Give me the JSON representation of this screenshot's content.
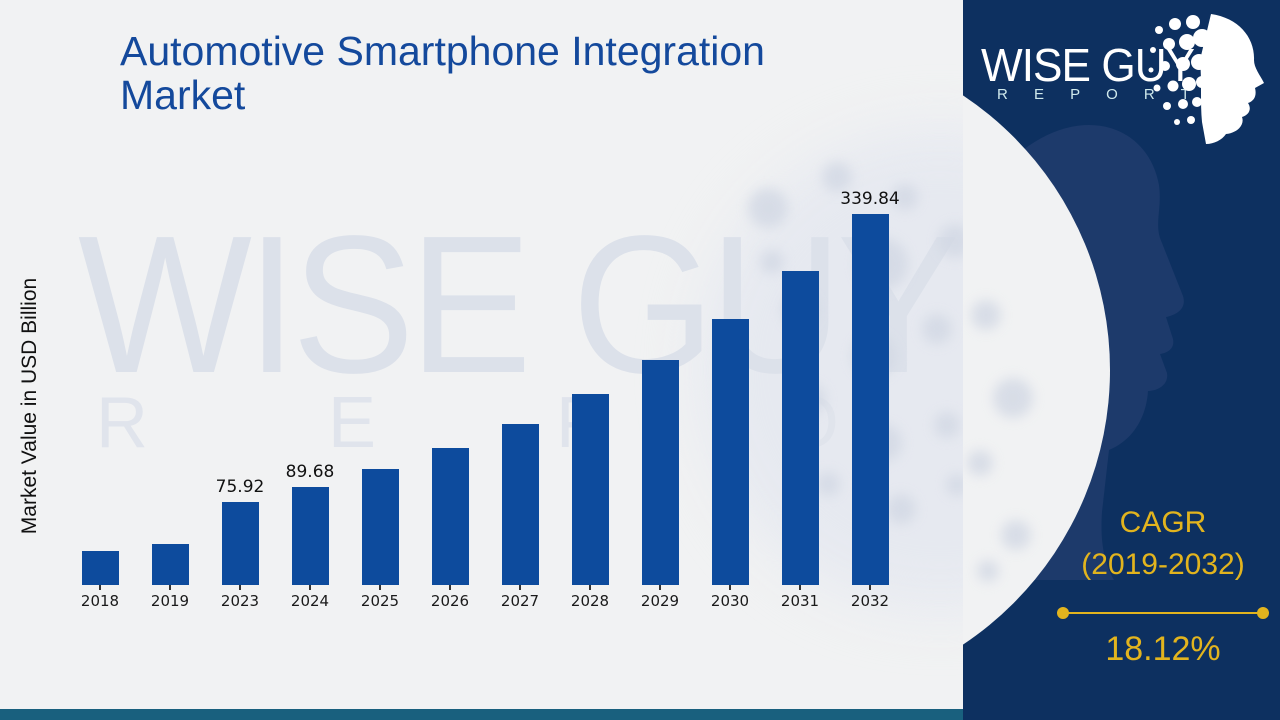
{
  "title": "Automotive Smartphone Integration Market",
  "y_axis_label": "Market Value in USD Billion",
  "logo": {
    "line1": "WISE GUY",
    "line2": "R E P O R T S"
  },
  "watermark": {
    "line1": "WISE GUY",
    "line2": "R E P O R T S"
  },
  "cagr": {
    "heading": "CAGR",
    "range": "(2019-2032)",
    "value": "18.12%"
  },
  "colors": {
    "bar": "#0d4b9d",
    "title_text": "#14499c",
    "panel_bg": "#0d3060",
    "accent_gold": "#e2b41e",
    "footer_teal": "#19607e",
    "page_bg": "#f1f2f3"
  },
  "chart_data": {
    "type": "bar",
    "categories": [
      "2018",
      "2019",
      "2023",
      "2024",
      "2025",
      "2026",
      "2027",
      "2028",
      "2029",
      "2030",
      "2031",
      "2032"
    ],
    "values": [
      31,
      38,
      75.92,
      89.68,
      105.9,
      125.1,
      147.8,
      174.6,
      206.2,
      243.6,
      287.7,
      339.84
    ],
    "value_labels": [
      "",
      "",
      "75.92",
      "89.68",
      "",
      "",
      "",
      "",
      "",
      "",
      "",
      "339.84"
    ],
    "title": "Automotive Smartphone Integration Market",
    "xlabel": "",
    "ylabel": "Market Value in USD Billion",
    "ylim": [
      0,
      360
    ],
    "grid": false,
    "legend": null,
    "bar_color": "#0d4b9d"
  }
}
